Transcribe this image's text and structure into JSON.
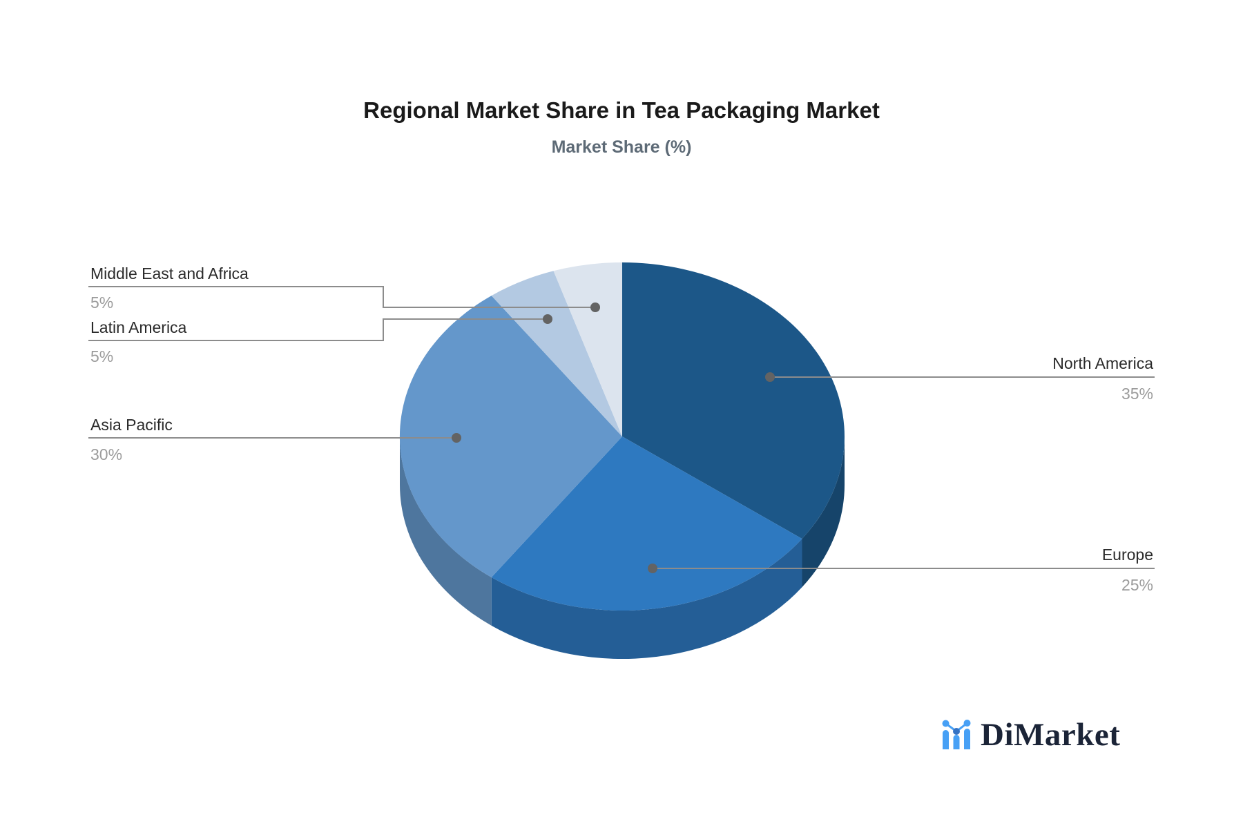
{
  "chart_data": {
    "type": "pie",
    "title": "Regional Market Share in Tea Packaging Market",
    "subtitle": "Market Share (%)",
    "unit": "%",
    "direction": "clockwise",
    "start_angle_deg": 0,
    "style_3d": true,
    "legend": "none",
    "slices": [
      {
        "label": "North America",
        "value": 35,
        "display": "35%",
        "color": "#1c5788"
      },
      {
        "label": "Europe",
        "value": 25,
        "display": "25%",
        "color": "#2e79c0"
      },
      {
        "label": "Asia Pacific",
        "value": 30,
        "display": "30%",
        "color": "#6497cb"
      },
      {
        "label": "Latin America",
        "value": 5,
        "display": "5%",
        "color": "#b3c9e2"
      },
      {
        "label": "Middle East and Africa",
        "value": 5,
        "display": "5%",
        "color": "#dce4ee"
      }
    ],
    "label_line_color": "#8c8c8c",
    "label_dot_color": "#636363",
    "label_text_color": "#2a2a2a",
    "label_value_color": "#9b9b9b",
    "title_color": "#1a1a1a",
    "subtitle_color": "#5d6a76",
    "background_color": "#ffffff"
  },
  "branding": {
    "logo_text": "DiMarket",
    "logo_icon": "bar-chart-trend-icon",
    "logo_text_color": "#1b2437",
    "icon_color": "#47a0f5",
    "icon_accent_color": "#3573c4"
  }
}
